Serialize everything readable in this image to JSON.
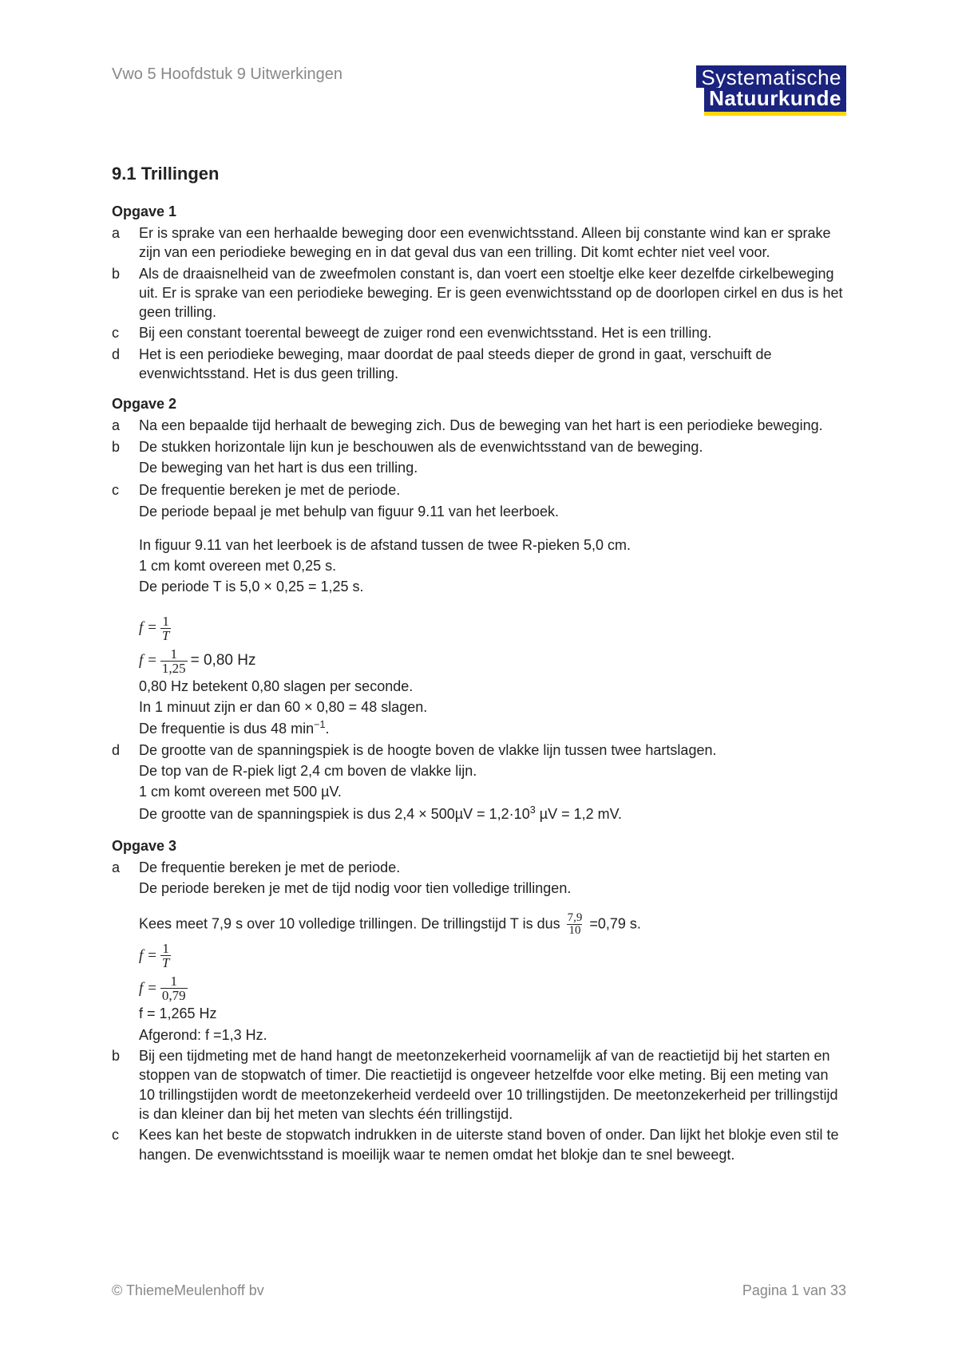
{
  "header": {
    "title": "Vwo 5 Hoofdstuk 9 Uitwerkingen",
    "brand_top": "Systematische",
    "brand_bottom": "Natuurkunde"
  },
  "section_title": "9.1 Trillingen",
  "opgave1": {
    "title": "Opgave 1",
    "a": "Er is sprake van een herhaalde beweging door een evenwichtsstand. Alleen bij constante wind kan er sprake zijn van een periodieke beweging en in dat geval dus van een trilling. Dit komt echter niet veel voor.",
    "b": "Als de draaisnelheid van de zweefmolen constant is, dan voert een stoeltje elke keer dezelfde cirkelbeweging uit. Er is sprake van een periodieke beweging. Er is geen evenwichtsstand op de doorlopen cirkel en dus is het geen trilling.",
    "c": "Bij een constant toerental beweegt de zuiger rond een evenwichtsstand. Het is een trilling.",
    "d": "Het is een periodieke beweging, maar doordat de paal steeds dieper de grond in gaat, verschuift de evenwichtsstand. Het is dus geen trilling."
  },
  "opgave2": {
    "title": "Opgave 2",
    "a": "Na een bepaalde tijd herhaalt de beweging zich. Dus de beweging van het hart is een periodieke beweging.",
    "b1": "De stukken horizontale lijn kun je beschouwen als de evenwichtsstand van de beweging.",
    "b2": "De beweging van het hart is dus een trilling.",
    "c1": "De frequentie bereken je met de periode.",
    "c2": "De periode bepaal je met behulp van figuur 9.11 van het leerboek.",
    "c3": "In figuur 9.11 van het leerboek is de afstand tussen de twee R-pieken 5,0 cm.",
    "c4": "1 cm komt overeen met 0,25 s.",
    "c5": "De periode T is 5,0 × 0,25 = 1,25 s.",
    "c6": "0,80 Hz betekent 0,80 slagen per seconde.",
    "c7": "In 1 minuut zijn er dan 60 × 0,80 = 48 slagen.",
    "c8_pre": "De frequentie is dus 48 min",
    "c8_post": ".",
    "d1": "De grootte van de spanningspiek is de hoogte boven de vlakke lijn tussen twee hartslagen.",
    "d2": "De top van de R-piek ligt 2,4 cm boven de vlakke lijn.",
    "d3": "1 cm komt overeen met 500 µV.",
    "d4_pre": "De grootte van de spanningspiek is dus 2,4 × 500µV = 1,2·10",
    "d4_post": " µV = 1,2 mV."
  },
  "opgave3": {
    "title": "Opgave 3",
    "a1": "De frequentie bereken je met de periode.",
    "a2": "De periode bereken je met de tijd nodig voor tien volledige trillingen.",
    "a3_pre": "Kees meet 7,9 s over 10 volledige trillingen. De trillingstijd T is dus ",
    "a3_post": " =0,79 s.",
    "a4": "f = 1,265 Hz",
    "a5": "Afgerond: f =1,3 Hz.",
    "b": "Bij een tijdmeting met de hand hangt de meetonzekerheid voornamelijk af van de reactietijd bij het starten en stoppen van de stopwatch of timer. Die reactietijd is ongeveer hetzelfde voor elke meting. Bij een meting van 10 trillingstijden wordt de meetonzekerheid verdeeld over 10 trillingstijden. De meetonzekerheid per trillingstijd is dan kleiner dan bij het meten van slechts één trillingstijd.",
    "c": "Kees kan het beste de stopwatch indrukken in de uiterste stand boven of onder. Dan lijkt het blokje even stil te hangen. De evenwichtsstand is moeilijk waar te nemen omdat het blokje dan te snel beweegt."
  },
  "formulas": {
    "f_eq": "f =",
    "num1": "1",
    "denT": "T",
    "den125": "1,25",
    "result_080": " = 0,80 Hz",
    "den079": "0,79",
    "frac79_num": "7,9",
    "frac79_den": "10"
  },
  "footer": {
    "left": "© ThiemeMeulenhoff bv",
    "right": "Pagina 1 van 33"
  }
}
